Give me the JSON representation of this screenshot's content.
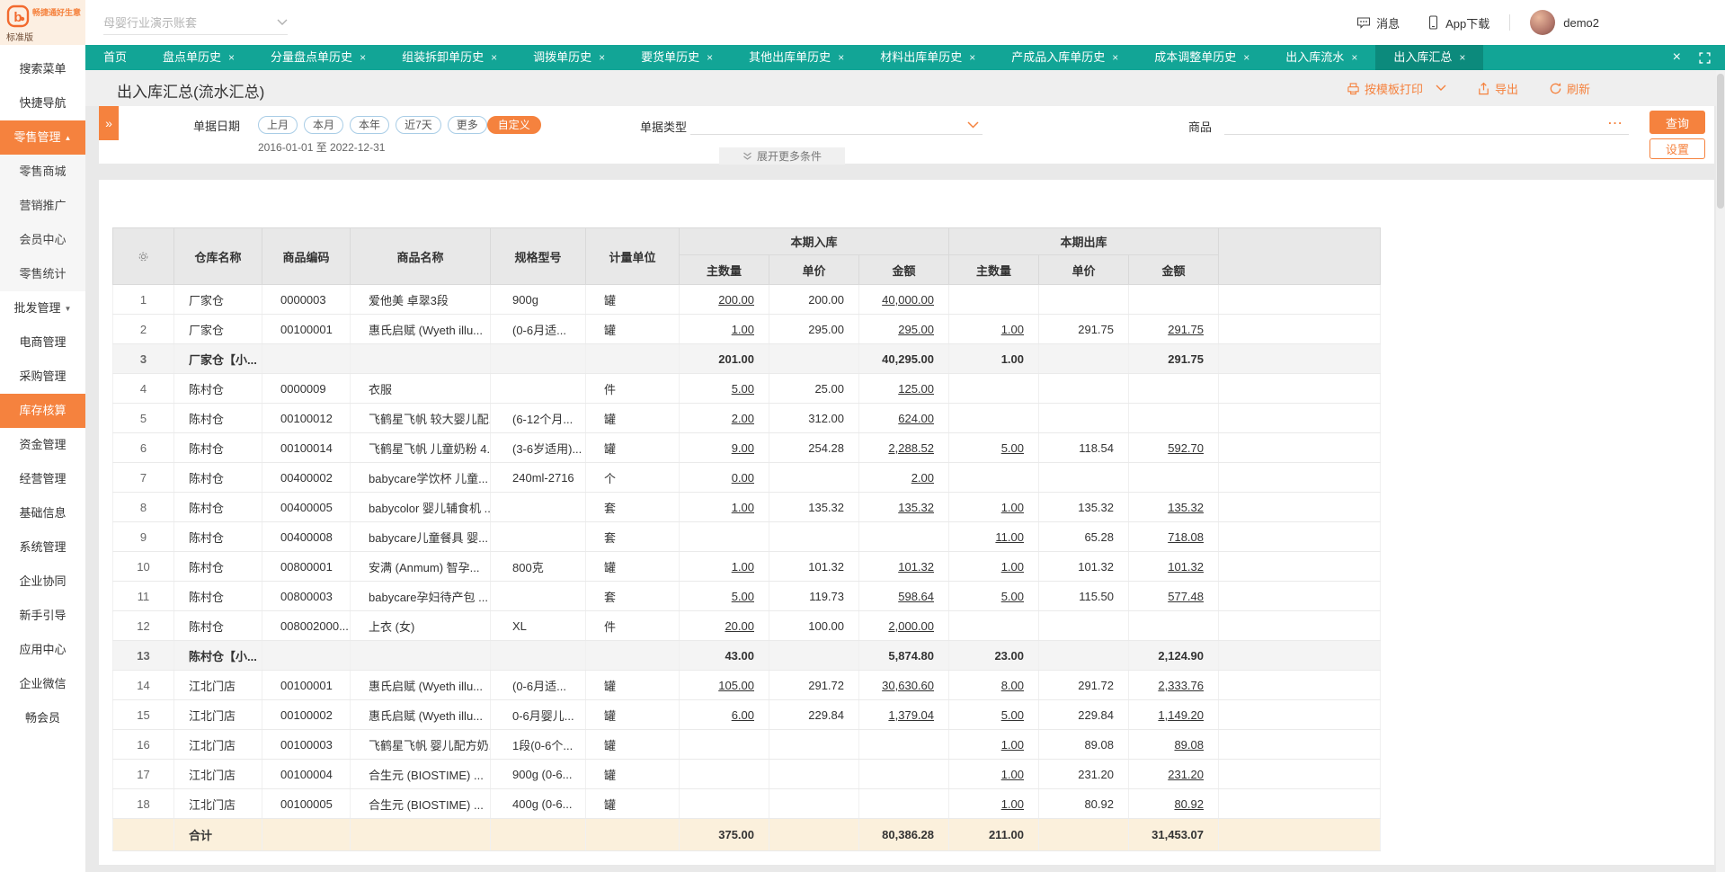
{
  "colors": {
    "teal": "#12a596",
    "teal-dark": "#0c8a7c",
    "orange": "#f5823e",
    "orange-light-bg": "#fcefe2",
    "header-gray": "#efefef",
    "table-header-bg": "#e8e8e8",
    "subtotal-bg": "#f4f4f4",
    "total-bg": "#fbf0dc"
  },
  "topbar": {
    "logo_title": "畅捷通好生意",
    "logo_subtitle": "标准版",
    "account_select": "母婴行业演示账套",
    "messages_label": "消息",
    "app_download_label": "App下载",
    "username": "demo2"
  },
  "tabs": {
    "items": [
      {
        "label": "首页",
        "closable": false,
        "active": false
      },
      {
        "label": "盘点单历史",
        "closable": true,
        "active": false
      },
      {
        "label": "分量盘点单历史",
        "closable": true,
        "active": false
      },
      {
        "label": "组装拆卸单历史",
        "closable": true,
        "active": false
      },
      {
        "label": "调拨单历史",
        "closable": true,
        "active": false
      },
      {
        "label": "要货单历史",
        "closable": true,
        "active": false
      },
      {
        "label": "其他出库单历史",
        "closable": true,
        "active": false
      },
      {
        "label": "材料出库单历史",
        "closable": true,
        "active": false
      },
      {
        "label": "产成品入库单历史",
        "closable": true,
        "active": false
      },
      {
        "label": "成本调整单历史",
        "closable": true,
        "active": false
      },
      {
        "label": "出入库流水",
        "closable": true,
        "active": false
      },
      {
        "label": "出入库汇总",
        "closable": true,
        "active": true
      }
    ]
  },
  "sidebar": {
    "items": [
      {
        "label": "搜索菜单"
      },
      {
        "label": "快捷导航"
      },
      {
        "label": "零售管理",
        "active": true,
        "arrow": "up"
      },
      {
        "label": "零售商城",
        "sub": true
      },
      {
        "label": "营销推广",
        "sub": true
      },
      {
        "label": "会员中心",
        "sub": true
      },
      {
        "label": "零售统计",
        "sub": true
      },
      {
        "label": "批发管理",
        "arrow": "down"
      },
      {
        "label": "电商管理"
      },
      {
        "label": "采购管理"
      },
      {
        "label": "库存核算",
        "active": true
      },
      {
        "label": "资金管理"
      },
      {
        "label": "经营管理"
      },
      {
        "label": "基础信息"
      },
      {
        "label": "系统管理"
      },
      {
        "label": "企业协同"
      },
      {
        "label": "新手引导"
      },
      {
        "label": "应用中心"
      },
      {
        "label": "企业微信"
      },
      {
        "label": "畅会员"
      }
    ]
  },
  "page": {
    "title": "出入库汇总(流水汇总)",
    "actions": {
      "print": "按模板打印",
      "export": "导出",
      "refresh": "刷新"
    }
  },
  "filters": {
    "date_label": "单据日期",
    "date_pills": [
      "上月",
      "本月",
      "本年",
      "近7天",
      "更多"
    ],
    "date_custom": "自定义",
    "date_range": "2016-01-01 至 2022-12-31",
    "doc_type_label": "单据类型",
    "product_label": "商品",
    "query_button": "查询",
    "settings_button": "设置",
    "expand_more": "展开更多条件"
  },
  "table": {
    "headers": {
      "warehouse": "仓库名称",
      "code": "商品编码",
      "name": "商品名称",
      "spec": "规格型号",
      "unit": "计量单位",
      "group_in": "本期入库",
      "group_out": "本期出库",
      "qty": "主数量",
      "price": "单价",
      "amount": "金额"
    },
    "rows": [
      {
        "type": "detail",
        "no": "1",
        "warehouse": "厂家仓",
        "code": "0000003",
        "name": "爱他美 卓翠3段",
        "spec": "900g",
        "unit": "罐",
        "in_qty": "200.00",
        "in_price": "200.00",
        "in_amt": "40,000.00",
        "out_qty": "",
        "out_price": "",
        "out_amt": ""
      },
      {
        "type": "detail",
        "no": "2",
        "warehouse": "厂家仓",
        "code": "00100001",
        "name": "惠氏启赋 (Wyeth illu...",
        "spec": "(0-6月适...",
        "unit": "罐",
        "in_qty": "1.00",
        "in_price": "295.00",
        "in_amt": "295.00",
        "out_qty": "1.00",
        "out_price": "291.75",
        "out_amt": "291.75"
      },
      {
        "type": "subtotal",
        "no": "3",
        "warehouse": "厂家仓【小...",
        "code": "",
        "name": "",
        "spec": "",
        "unit": "",
        "in_qty": "201.00",
        "in_price": "",
        "in_amt": "40,295.00",
        "out_qty": "1.00",
        "out_price": "",
        "out_amt": "291.75"
      },
      {
        "type": "detail",
        "no": "4",
        "warehouse": "陈村仓",
        "code": "0000009",
        "name": "衣服",
        "spec": "",
        "unit": "件",
        "in_qty": "5.00",
        "in_price": "25.00",
        "in_amt": "125.00",
        "out_qty": "",
        "out_price": "",
        "out_amt": ""
      },
      {
        "type": "detail",
        "no": "5",
        "warehouse": "陈村仓",
        "code": "00100012",
        "name": "飞鹤星飞帆 较大婴儿配...",
        "spec": "(6-12个月...",
        "unit": "罐",
        "in_qty": "2.00",
        "in_price": "312.00",
        "in_amt": "624.00",
        "out_qty": "",
        "out_price": "",
        "out_amt": ""
      },
      {
        "type": "detail",
        "no": "6",
        "warehouse": "陈村仓",
        "code": "00100014",
        "name": "飞鹤星飞帆 儿童奶粉 4...",
        "spec": "(3-6岁适用)...",
        "unit": "罐",
        "in_qty": "9.00",
        "in_price": "254.28",
        "in_amt": "2,288.52",
        "out_qty": "5.00",
        "out_price": "118.54",
        "out_amt": "592.70"
      },
      {
        "type": "detail",
        "no": "7",
        "warehouse": "陈村仓",
        "code": "00400002",
        "name": "babycare学饮杯 儿童...",
        "spec": "240ml-2716",
        "unit": "个",
        "in_qty": "0.00",
        "in_price": "",
        "in_amt": "2.00",
        "out_qty": "",
        "out_price": "",
        "out_amt": ""
      },
      {
        "type": "detail",
        "no": "8",
        "warehouse": "陈村仓",
        "code": "00400005",
        "name": "babycolor 婴儿辅食机 ...",
        "spec": "",
        "unit": "套",
        "in_qty": "1.00",
        "in_price": "135.32",
        "in_amt": "135.32",
        "out_qty": "1.00",
        "out_price": "135.32",
        "out_amt": "135.32"
      },
      {
        "type": "detail",
        "no": "9",
        "warehouse": "陈村仓",
        "code": "00400008",
        "name": "babycare儿童餐具 婴...",
        "spec": "",
        "unit": "套",
        "in_qty": "",
        "in_price": "",
        "in_amt": "",
        "out_qty": "11.00",
        "out_price": "65.28",
        "out_amt": "718.08"
      },
      {
        "type": "detail",
        "no": "10",
        "warehouse": "陈村仓",
        "code": "00800001",
        "name": "安满 (Anmum) 智孕...",
        "spec": "800克",
        "unit": "罐",
        "in_qty": "1.00",
        "in_price": "101.32",
        "in_amt": "101.32",
        "out_qty": "1.00",
        "out_price": "101.32",
        "out_amt": "101.32"
      },
      {
        "type": "detail",
        "no": "11",
        "warehouse": "陈村仓",
        "code": "00800003",
        "name": "babycare孕妇待产包 ...",
        "spec": "",
        "unit": "套",
        "in_qty": "5.00",
        "in_price": "119.73",
        "in_amt": "598.64",
        "out_qty": "5.00",
        "out_price": "115.50",
        "out_amt": "577.48"
      },
      {
        "type": "detail",
        "no": "12",
        "warehouse": "陈村仓",
        "code": "008002000...",
        "name": "上衣 (女)",
        "spec": "XL",
        "unit": "件",
        "in_qty": "20.00",
        "in_price": "100.00",
        "in_amt": "2,000.00",
        "out_qty": "",
        "out_price": "",
        "out_amt": ""
      },
      {
        "type": "subtotal",
        "no": "13",
        "warehouse": "陈村仓【小...",
        "code": "",
        "name": "",
        "spec": "",
        "unit": "",
        "in_qty": "43.00",
        "in_price": "",
        "in_amt": "5,874.80",
        "out_qty": "23.00",
        "out_price": "",
        "out_amt": "2,124.90"
      },
      {
        "type": "detail",
        "no": "14",
        "warehouse": "江北门店",
        "code": "00100001",
        "name": "惠氏启赋 (Wyeth illu...",
        "spec": "(0-6月适...",
        "unit": "罐",
        "in_qty": "105.00",
        "in_price": "291.72",
        "in_amt": "30,630.60",
        "out_qty": "8.00",
        "out_price": "291.72",
        "out_amt": "2,333.76"
      },
      {
        "type": "detail",
        "no": "15",
        "warehouse": "江北门店",
        "code": "00100002",
        "name": "惠氏启赋 (Wyeth illu...",
        "spec": "0-6月婴儿...",
        "unit": "罐",
        "in_qty": "6.00",
        "in_price": "229.84",
        "in_amt": "1,379.04",
        "out_qty": "5.00",
        "out_price": "229.84",
        "out_amt": "1,149.20"
      },
      {
        "type": "detail",
        "no": "16",
        "warehouse": "江北门店",
        "code": "00100003",
        "name": "飞鹤星飞帆 婴儿配方奶...",
        "spec": "1段(0-6个...",
        "unit": "罐",
        "in_qty": "",
        "in_price": "",
        "in_amt": "",
        "out_qty": "1.00",
        "out_price": "89.08",
        "out_amt": "89.08"
      },
      {
        "type": "detail",
        "no": "17",
        "warehouse": "江北门店",
        "code": "00100004",
        "name": "合生元 (BIOSTIME) ...",
        "spec": "900g (0-6...",
        "unit": "罐",
        "in_qty": "",
        "in_price": "",
        "in_amt": "",
        "out_qty": "1.00",
        "out_price": "231.20",
        "out_amt": "231.20"
      },
      {
        "type": "detail",
        "no": "18",
        "warehouse": "江北门店",
        "code": "00100005",
        "name": "合生元 (BIOSTIME) ...",
        "spec": "400g (0-6...",
        "unit": "罐",
        "in_qty": "",
        "in_price": "",
        "in_amt": "",
        "out_qty": "1.00",
        "out_price": "80.92",
        "out_amt": "80.92"
      },
      {
        "type": "total",
        "no": "",
        "warehouse": "合计",
        "code": "",
        "name": "",
        "spec": "",
        "unit": "",
        "in_qty": "375.00",
        "in_price": "",
        "in_amt": "80,386.28",
        "out_qty": "211.00",
        "out_price": "",
        "out_amt": "31,453.07"
      }
    ]
  }
}
